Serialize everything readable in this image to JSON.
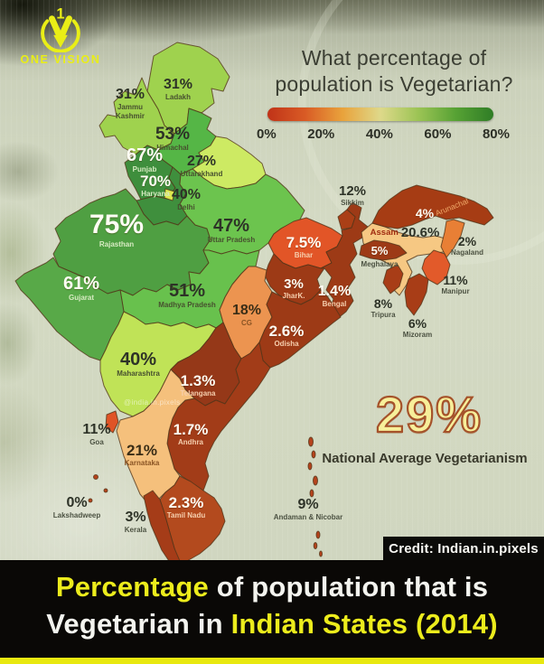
{
  "brand": {
    "name": "ONE VISION",
    "color": "#e9ee16"
  },
  "header": {
    "title_line1": "What percentage of",
    "title_line2": "population is Vegetarian?",
    "legend_gradient": [
      "#c03318",
      "#d95b25",
      "#e9a33c",
      "#ded98a",
      "#9cc455",
      "#57a234",
      "#2f7d26"
    ],
    "legend_ticks": [
      "0%",
      "20%",
      "40%",
      "60%",
      "80%"
    ]
  },
  "highlight": {
    "value": "29%",
    "caption": "National Average Vegetarianism"
  },
  "credit": {
    "text": "Credit: Indian.in.pixels"
  },
  "watermark": "@india.in.pixels",
  "footer": {
    "highlight_color": "#ecec1c",
    "text_color": "#f4f4ef",
    "line1": [
      {
        "text": "Percentage",
        "highlight": true
      },
      {
        "text": " of population that is",
        "highlight": false
      }
    ],
    "line2": [
      {
        "text": "Vegetarian in ",
        "highlight": false
      },
      {
        "text": "Indian States (2014)",
        "highlight": true
      }
    ]
  },
  "chart_data": {
    "type": "choropleth",
    "region": "India",
    "title": "What percentage of population is Vegetarian?",
    "subtitle": "Percentage of population that is Vegetarian in Indian States (2014)",
    "year": "2014",
    "national_average_percent": 29,
    "legend": {
      "tick_labels": [
        "0%",
        "20%",
        "40%",
        "60%",
        "80%"
      ],
      "min": 0,
      "max": 80,
      "low_color": "#c03318",
      "high_color": "#2f7d26"
    },
    "states": [
      {
        "id": "ladakh",
        "name": "Ladakh",
        "percent": 31,
        "fill": "#9fd24e"
      },
      {
        "id": "jammu-kashmir",
        "name": "Jammu Kashmir",
        "percent": 31,
        "fill": "#9fd24e"
      },
      {
        "id": "himachal",
        "name": "Himachal",
        "percent": 53,
        "fill": "#55b646"
      },
      {
        "id": "punjab",
        "name": "Punjab",
        "percent": 67,
        "fill": "#3e8e3c"
      },
      {
        "id": "uttarakhand",
        "name": "Uttarakhand",
        "percent": 27,
        "fill": "#cdea63"
      },
      {
        "id": "haryana",
        "name": "Haryana",
        "percent": 70,
        "fill": "#3f8f3d"
      },
      {
        "id": "delhi",
        "name": "Delhi",
        "percent": 40,
        "fill": "#dde74e"
      },
      {
        "id": "rajasthan",
        "name": "Rajasthan",
        "percent": 75,
        "fill": "#4f9f42"
      },
      {
        "id": "uttar-pradesh",
        "name": "Uttar Pradesh",
        "percent": 47,
        "fill": "#6cc44e"
      },
      {
        "id": "gujarat",
        "name": "Gujarat",
        "percent": 61,
        "fill": "#58a948"
      },
      {
        "id": "madhya-pradesh",
        "name": "Madhya Pradesh",
        "percent": 51,
        "fill": "#68c14d"
      },
      {
        "id": "maharashtra",
        "name": "Maharashtra",
        "percent": 40,
        "fill": "#c0e357"
      },
      {
        "id": "sikkim",
        "name": "Sikkim",
        "percent": 12,
        "fill": "#aa3f16"
      },
      {
        "id": "bihar",
        "name": "Bihar",
        "percent": 7.5,
        "fill": "#e25527"
      },
      {
        "id": "west-bengal",
        "name": "Bengal",
        "percent": 1.4,
        "fill": "#9d3a16"
      },
      {
        "id": "jharkhand",
        "name": "JharK.",
        "percent": 3,
        "fill": "#9d3a16"
      },
      {
        "id": "assam",
        "name": "Assam",
        "percent": 20.6,
        "fill": "#f6c883"
      },
      {
        "id": "arunachal",
        "name": "Arunachal",
        "percent": 4,
        "fill": "#a63c14"
      },
      {
        "id": "nagaland",
        "name": "Nagaland",
        "percent": 2,
        "fill": "#e87f35"
      },
      {
        "id": "meghalaya",
        "name": "Meghalaya",
        "percent": 5,
        "fill": "#9d3a16"
      },
      {
        "id": "manipur",
        "name": "Manipur",
        "percent": 11,
        "fill": "#e25a2a"
      },
      {
        "id": "tripura",
        "name": "Tripura",
        "percent": 8,
        "fill": "#a83d17"
      },
      {
        "id": "mizoram",
        "name": "Mizoram",
        "percent": 6,
        "fill": "#a83d17"
      },
      {
        "id": "chhattisgarh",
        "name": "CG",
        "percent": 18,
        "fill": "#ec9450"
      },
      {
        "id": "odisha",
        "name": "Odisha",
        "percent": 2.6,
        "fill": "#9d3a16"
      },
      {
        "id": "telangana",
        "name": "Telangana",
        "percent": 1.3,
        "fill": "#953818"
      },
      {
        "id": "goa",
        "name": "Goa",
        "percent": 11,
        "fill": "#e05426"
      },
      {
        "id": "andhra",
        "name": "Andhra",
        "percent": 1.7,
        "fill": "#a23c18"
      },
      {
        "id": "karnataka",
        "name": "Karnataka",
        "percent": 21,
        "fill": "#f5c07c"
      },
      {
        "id": "kerala",
        "name": "Kerala",
        "percent": 3,
        "fill": "#a53c18"
      },
      {
        "id": "tamil-nadu",
        "name": "Tamil Nadu",
        "percent": 2.3,
        "fill": "#b34a1e"
      },
      {
        "id": "lakshadweep",
        "name": "Lakshadweep",
        "percent": 0,
        "fill": "#b5431c"
      },
      {
        "id": "andaman-nicobar",
        "name": "Andaman & Nicobar",
        "percent": 9,
        "fill": "#b5431c"
      }
    ]
  }
}
